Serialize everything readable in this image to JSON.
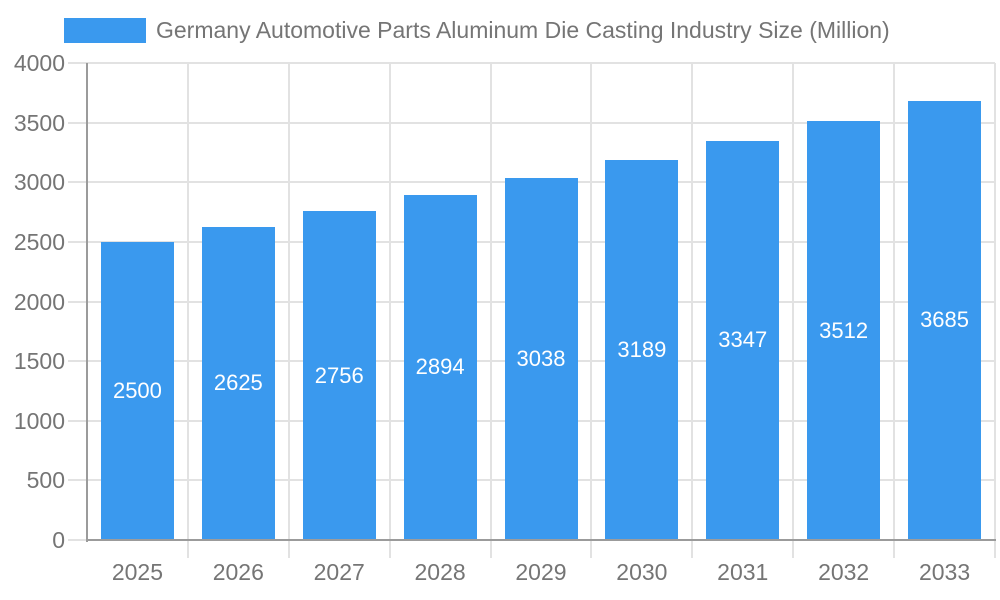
{
  "legend": {
    "label": "Germany Automotive Parts Aluminum Die Casting Industry Size (Million)"
  },
  "chart_data": {
    "type": "bar",
    "title": "Germany Automotive Parts Aluminum Die Casting Industry Size (Million)",
    "categories": [
      "2025",
      "2026",
      "2027",
      "2028",
      "2029",
      "2030",
      "2031",
      "2032",
      "2033"
    ],
    "values": [
      2500,
      2625,
      2756,
      2894,
      3038,
      3189,
      3347,
      3512,
      3685
    ],
    "bar_labels": [
      "2500",
      "2625",
      "2756",
      "2894",
      "3038",
      "3189",
      "3347",
      "3512",
      "3685"
    ],
    "xlabel": "",
    "ylabel": "",
    "ylim": [
      0,
      4000
    ],
    "yticks": [
      0,
      500,
      1000,
      1500,
      2000,
      2500,
      3000,
      3500,
      4000
    ],
    "grid": true,
    "legend_position": "top",
    "colors": {
      "bar": "#3a99ee",
      "bar_label": "#ffffff",
      "grid": "#e2e2e2",
      "axis": "#9b9b9b",
      "text": "#757575"
    }
  }
}
